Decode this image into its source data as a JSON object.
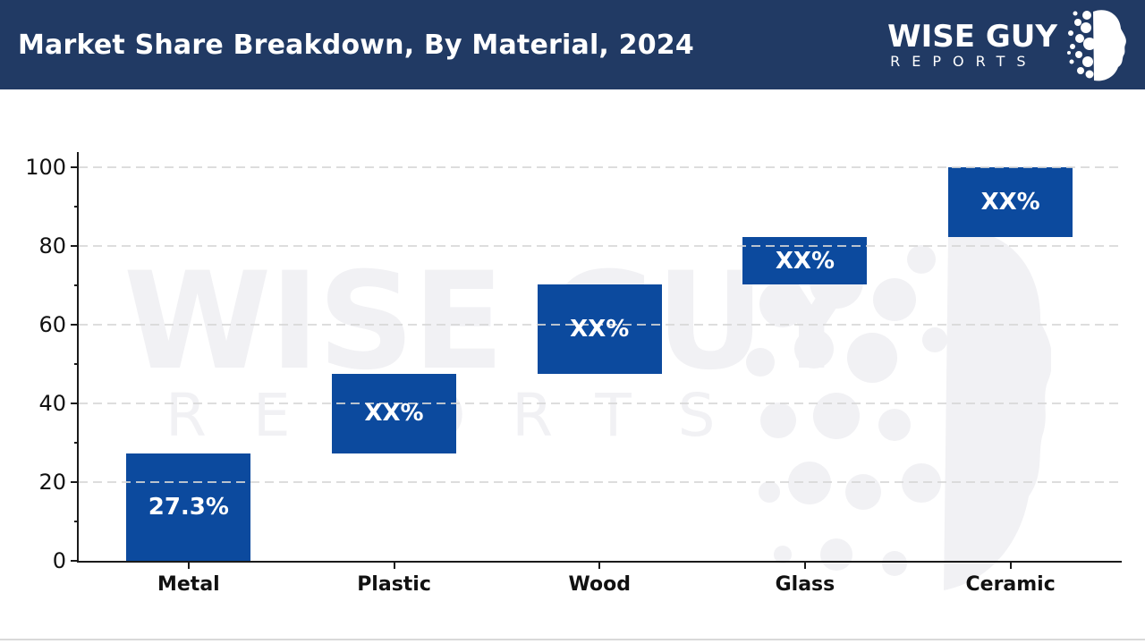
{
  "header": {
    "title": "Market Share Breakdown, By Material, 2024",
    "logo": {
      "line1": "WISE GUY",
      "line2": "REPORTS"
    }
  },
  "watermark": {
    "line1": "WISE GUY",
    "line2": "REPORTS"
  },
  "colors": {
    "header_bg": "#213a64",
    "bar": "#0c4a9e",
    "grid": "#d7d7d7",
    "axis": "#1a1a1a",
    "bar_label": "#ffffff",
    "watermark": "#f1f1f4"
  },
  "chart_data": {
    "type": "bar",
    "subtype": "waterfall",
    "title": "Market Share Breakdown, By Material, 2024",
    "xlabel": "",
    "ylabel": "",
    "categories": [
      "Metal",
      "Plastic",
      "Wood",
      "Glass",
      "Ceramic"
    ],
    "segments": [
      {
        "category": "Metal",
        "start": 0,
        "end": 27.3,
        "label": "27.3%"
      },
      {
        "category": "Plastic",
        "start": 27.3,
        "end": 47.6,
        "label": "XX%"
      },
      {
        "category": "Wood",
        "start": 47.6,
        "end": 70.3,
        "label": "XX%"
      },
      {
        "category": "Glass",
        "start": 70.3,
        "end": 82.2,
        "label": "XX%"
      },
      {
        "category": "Ceramic",
        "start": 82.2,
        "end": 100,
        "label": "XX%"
      }
    ],
    "ylim": [
      0,
      100
    ],
    "yticks": [
      0,
      20,
      40,
      60,
      80,
      100
    ],
    "grid": "dashed-horizontal",
    "legend": "none"
  }
}
